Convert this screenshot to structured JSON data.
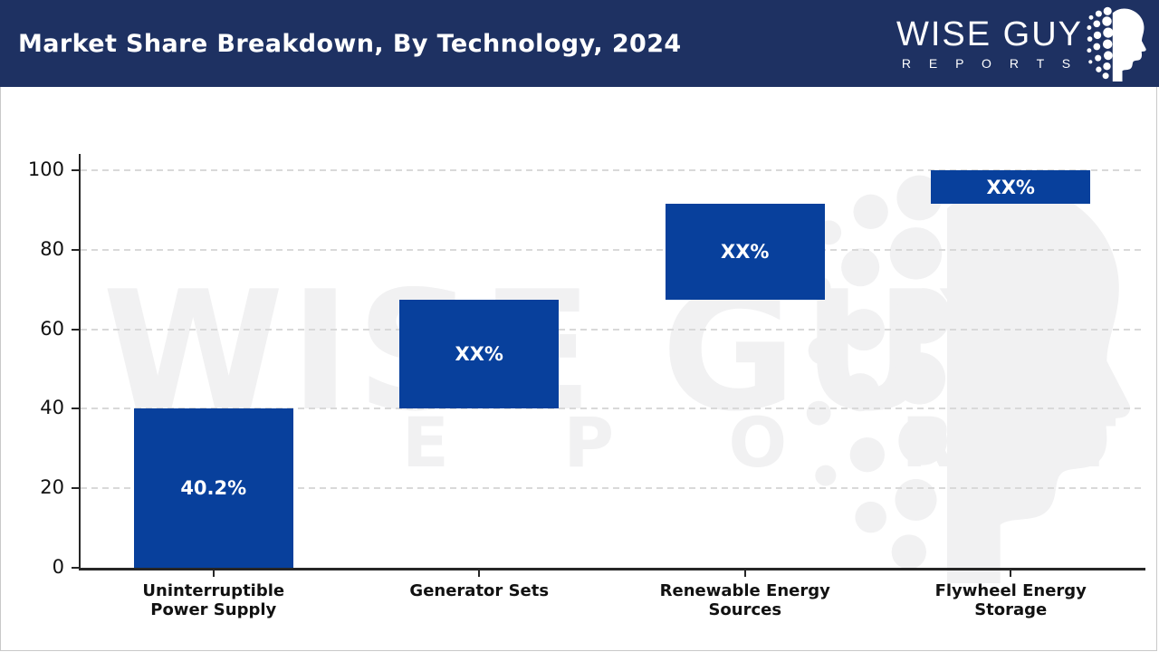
{
  "header": {
    "title": "Market Share Breakdown, By Technology, 2024",
    "bg_color": "#1e3162",
    "logo": {
      "line1": "WISE GUY",
      "line2": "R E P O R T S"
    }
  },
  "watermark": {
    "line1": "WISE GUY",
    "line2": "R E P O R T S"
  },
  "chart_data": {
    "type": "bar",
    "subtype": "floating-waterfall",
    "title": "Market Share Breakdown, By Technology, 2024",
    "categories": [
      "Uninterruptible Power Supply",
      "Generator Sets",
      "Renewable Energy Sources",
      "Flywheel Energy Storage"
    ],
    "category_lines": [
      [
        "Uninterruptible",
        "Power Supply"
      ],
      [
        "Generator Sets"
      ],
      [
        "Renewable Energy",
        "Sources"
      ],
      [
        "Flywheel Energy",
        "Storage"
      ]
    ],
    "segments": [
      {
        "category": "Uninterruptible Power Supply",
        "from": 0,
        "to": 40.2,
        "label": "40.2%"
      },
      {
        "category": "Generator Sets",
        "from": 40.2,
        "to": 67.5,
        "label": "XX%"
      },
      {
        "category": "Renewable Energy Sources",
        "from": 67.5,
        "to": 91.5,
        "label": "XX%"
      },
      {
        "category": "Flywheel Energy Storage",
        "from": 91.5,
        "to": 100,
        "label": "XX%"
      }
    ],
    "ylim": [
      0,
      100
    ],
    "yticks": [
      0,
      20,
      40,
      60,
      80,
      100
    ],
    "grid": "dashed-horizontal",
    "legend": "none",
    "bar_color": "#08409c",
    "bar_label_color": "#ffffff",
    "axis_color": "#262626",
    "gridline_color": "#d9d9d9"
  }
}
